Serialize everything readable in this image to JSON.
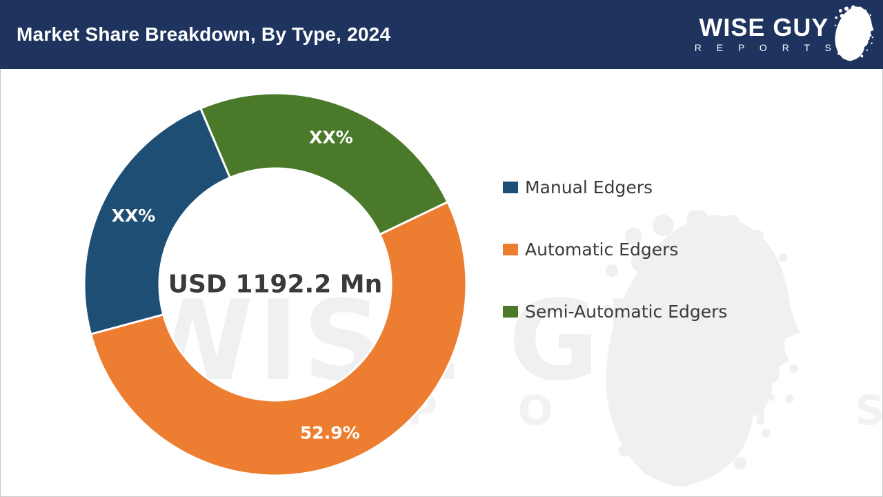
{
  "header": {
    "title": "Market Share Breakdown, By Type, 2024",
    "logo": {
      "line1": "WISE GUY",
      "line2": "R E P O R T S"
    }
  },
  "watermark": {
    "line1": "WISE GUY",
    "line2": "R E P O R T S"
  },
  "chart_data": {
    "type": "pie",
    "subtype": "donut",
    "title": "Market Share Breakdown, By Type, 2024",
    "center_label": "USD 1192.2 Mn",
    "start_angle_deg": -23,
    "clockwise": true,
    "segments": [
      {
        "name": "Semi-Automatic Edgers",
        "display_label": "XX%",
        "percent": 24.3,
        "color": "#4a7a29"
      },
      {
        "name": "Automatic Edgers",
        "display_label": "52.9%",
        "percent": 52.9,
        "color": "#ec7d31"
      },
      {
        "name": "Manual Edgers",
        "display_label": "XX%",
        "percent": 22.8,
        "color": "#1f4e74"
      }
    ],
    "legend": [
      {
        "label": "Manual Edgers",
        "color": "#1f4e74"
      },
      {
        "label": "Automatic Edgers",
        "color": "#ec7d31"
      },
      {
        "label": "Semi-Automatic Edgers",
        "color": "#4a7a29"
      }
    ],
    "legend_position": "right"
  },
  "colors": {
    "header_bg": "#1e345f",
    "text_dark": "#3a3a3a",
    "watermark": "#f0f0f1",
    "border": "#c9c9c9",
    "label_text": "#ffffff"
  }
}
